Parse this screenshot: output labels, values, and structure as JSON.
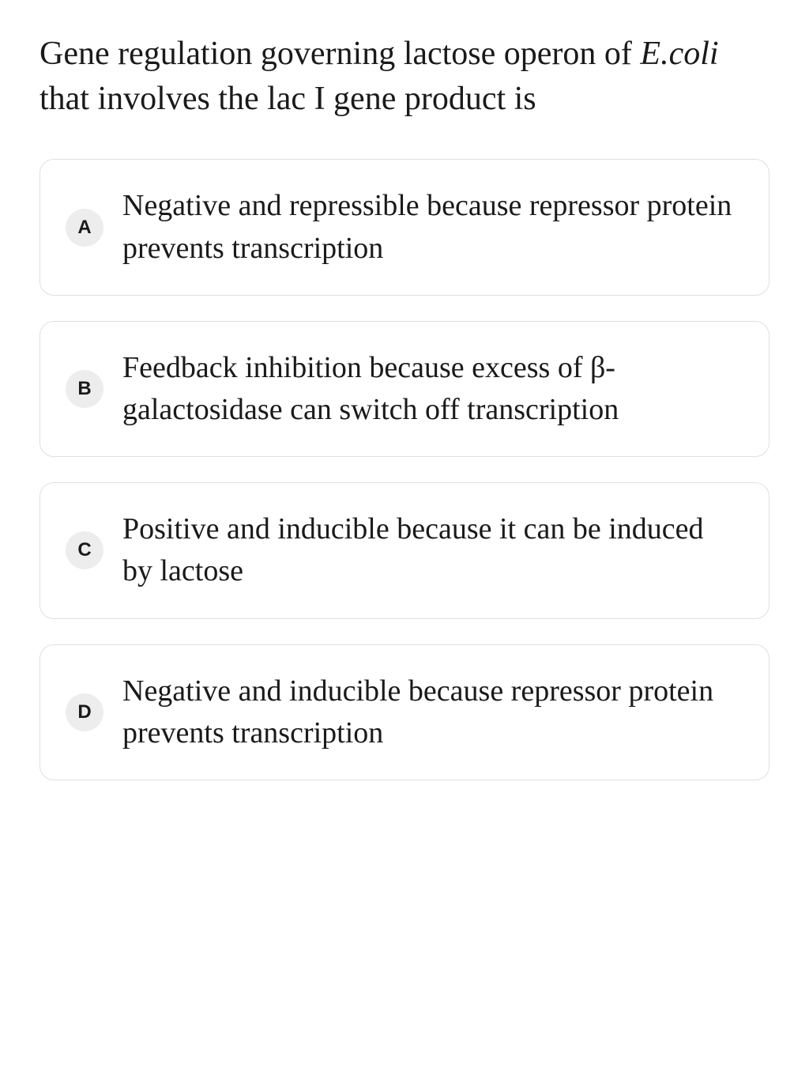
{
  "question": {
    "pre": "Gene regulation governing lactose operon of ",
    "italic": "E.coli",
    "post": " that involves the lac I gene product is"
  },
  "options": [
    {
      "letter": "A",
      "text": "Negative and repressible because repressor protein prevents transcription"
    },
    {
      "letter": "B",
      "text": "Feedback inhibition because excess of β-galactosidase can switch off transcription"
    },
    {
      "letter": "C",
      "text": "Positive and inducible because it can be induced by lactose"
    },
    {
      "letter": "D",
      "text": "Negative and inducible because repressor protein prevents transcription"
    }
  ],
  "styles": {
    "background_color": "#ffffff",
    "text_color": "#1a1a1a",
    "option_border_color": "#e0e0e0",
    "option_border_radius": 18,
    "letter_bg_color": "#ededed",
    "question_fontsize": 42,
    "option_fontsize": 38,
    "letter_fontsize": 24
  }
}
